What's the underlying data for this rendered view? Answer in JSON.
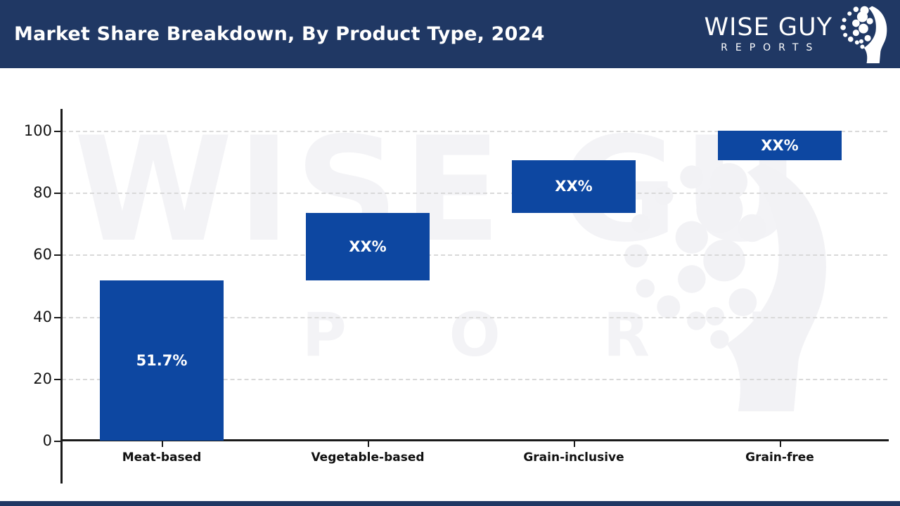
{
  "header": {
    "title": "Market Share Breakdown, By Product Type, 2024",
    "bg_color": "#203864",
    "text_color": "#ffffff",
    "logo": {
      "line1": "WISE GUY",
      "line2": "REPORTS"
    }
  },
  "watermark": {
    "line1": "WISE GU",
    "line2": "E P O R T S"
  },
  "chart_data": {
    "type": "bar",
    "subtype": "waterfall-stacked-percentage",
    "title": "Market Share Breakdown, By Product Type, 2024",
    "categories": [
      "Meat-based",
      "Vegetable-based",
      "Grain-inclusive",
      "Grain-free"
    ],
    "segments": [
      {
        "category": "Meat-based",
        "start": 0,
        "end": 51.7,
        "label": "51.7%"
      },
      {
        "category": "Vegetable-based",
        "start": 51.7,
        "end": 73.5,
        "label": "XX%"
      },
      {
        "category": "Grain-inclusive",
        "start": 73.5,
        "end": 90.5,
        "label": "XX%"
      },
      {
        "category": "Grain-free",
        "start": 90.5,
        "end": 100,
        "label": "XX%"
      }
    ],
    "values_displayed": [
      "51.7%",
      "XX%",
      "XX%",
      "XX%"
    ],
    "xlabel": "",
    "ylabel": "",
    "ylim": [
      0,
      105
    ],
    "yticks": [
      0,
      20,
      40,
      60,
      80,
      100
    ],
    "grid": "horizontal-dashed",
    "legend": "none",
    "bar_color": "#0d47a1",
    "bar_label_color": "#ffffff",
    "axis_color": "#1a1a1a",
    "gridline_color": "#d9d9d9"
  },
  "footer": {
    "bg_color": "#203864"
  }
}
